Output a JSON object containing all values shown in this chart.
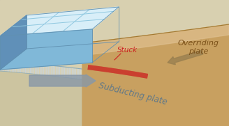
{
  "bg_color": "#b0b0b0",
  "ground_color": "#cdc9b0",
  "ground_bottom_color": "#bdb9a0",
  "subducting_top_color": "#c8d4d8",
  "subducting_bot_color": "#9ab0b8",
  "subducting_edge_color": "#8aaab8",
  "overriding_top_color": "#c8a060",
  "overriding_mid_color": "#d4aa70",
  "overriding_light_color": "#dfc090",
  "overriding_edge_color": "#a07830",
  "ocean_top_color": "#c0e0f0",
  "ocean_top_light": "#d8eef8",
  "ocean_front_color": "#80b8d8",
  "ocean_left_color": "#6090b8",
  "ocean_grid_color": "#90c8e0",
  "ocean_edge_color": "#6090b0",
  "stuck_color": "#cc2020",
  "arrow_sub_color": "#8898a8",
  "arrow_over_color": "#9a8050",
  "text_sub_color": "#607888",
  "text_over_color": "#7a5018",
  "text_stuck_color": "#cc2020",
  "text_sub": "Subducting plate",
  "text_over": "Overriding\nplate",
  "text_stuck": "Stuck"
}
